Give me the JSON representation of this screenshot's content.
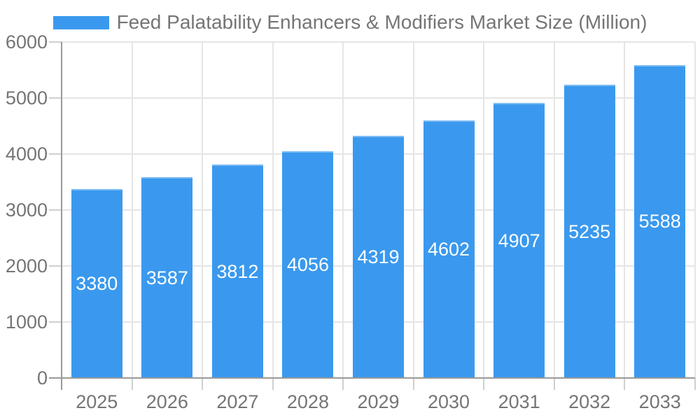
{
  "chart_data": {
    "type": "bar",
    "title": "Feed Palatability Enhancers & Modifiers Market Size (Million)",
    "categories": [
      "2025",
      "2026",
      "2027",
      "2028",
      "2029",
      "2030",
      "2031",
      "2032",
      "2033"
    ],
    "values": [
      3380,
      3587,
      3812,
      4056,
      4319,
      4602,
      4907,
      5235,
      5588
    ],
    "xlabel": "",
    "ylabel": "",
    "ylim": [
      0,
      6000
    ],
    "y_tick_step": 1000,
    "y_tick_labels": [
      "0",
      "1000",
      "2000",
      "3000",
      "4000",
      "5000",
      "6000"
    ],
    "grid": true,
    "legend_position": "top",
    "colors": {
      "bar": "#3a99ee",
      "grid": "#e5e5e5",
      "axis": "#9a9a9a",
      "tick": "#cfcfcf",
      "text": "#757575",
      "value_label": "#ffffff",
      "background": "#ffffff"
    }
  }
}
